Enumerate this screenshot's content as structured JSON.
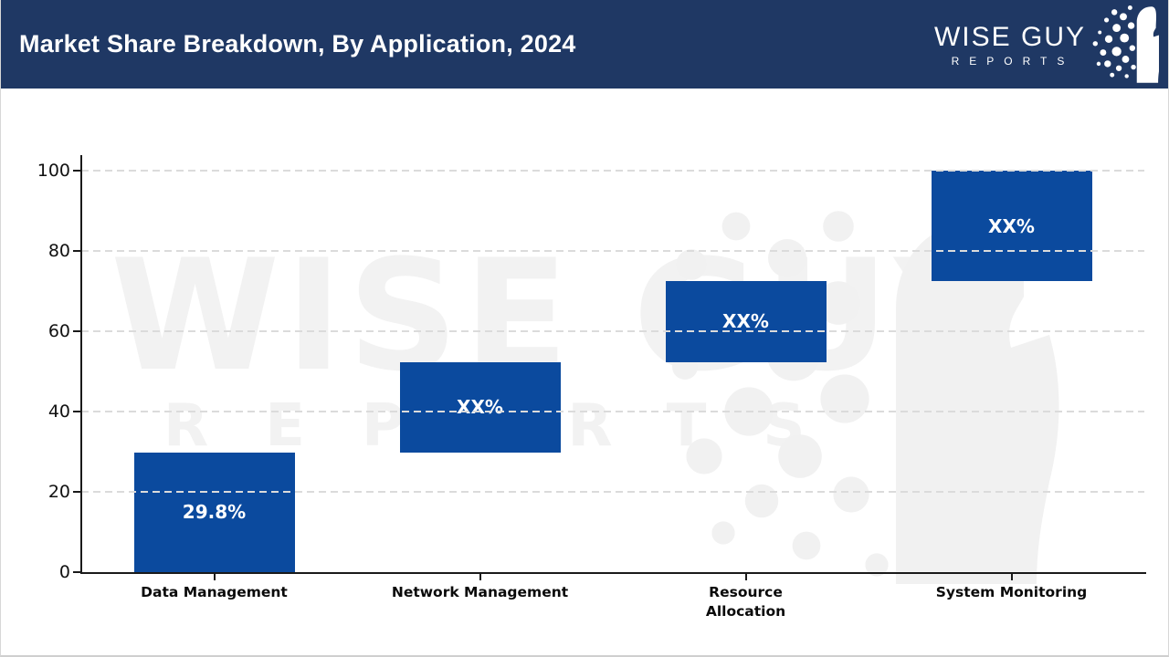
{
  "header": {
    "title": "Market Share Breakdown, By Application, 2024",
    "logo": {
      "line1": "WISE GUY",
      "line2": "REPORTS",
      "icon": "dot-face-profile-icon"
    }
  },
  "watermark": {
    "line1": "WISE GUY",
    "line2": "REPORTS",
    "icon": "dot-face-profile-watermark-icon"
  },
  "colors": {
    "header_bg": "#1F3864",
    "bar_fill": "#0B4A9E",
    "bar_label_text": "#FFFFFF",
    "gridline": "#DBDBDB",
    "axis": "#1A1A1A",
    "tick_label": "#111111",
    "watermark": "#F2F2F2",
    "page_bg": "#FFFFFF"
  },
  "chart_data": {
    "type": "bar",
    "subtype": "waterfall-stacked-to-100",
    "title": "Market Share Breakdown, By Application, 2024",
    "categories": [
      "Data Management",
      "Network Management",
      "Resource\nAllocation",
      "System Monitoring"
    ],
    "series": [
      {
        "name": "Market Share (%)",
        "segments": [
          {
            "category": "Data Management",
            "start": 0,
            "end": 29.8,
            "label": "29.8%"
          },
          {
            "category": "Network Management",
            "start": 29.8,
            "end": 52.3,
            "label": "XX%"
          },
          {
            "category": "Resource Allocation",
            "start": 52.3,
            "end": 72.5,
            "label": "XX%"
          },
          {
            "category": "System Monitoring",
            "start": 72.5,
            "end": 100,
            "label": "XX%"
          }
        ]
      }
    ],
    "xlabel": "",
    "ylabel": "",
    "ylim": [
      0,
      100
    ],
    "yticks": [
      0,
      20,
      40,
      60,
      80,
      100
    ],
    "grid": "horizontal-dashed-over-bars",
    "legend": "none"
  }
}
